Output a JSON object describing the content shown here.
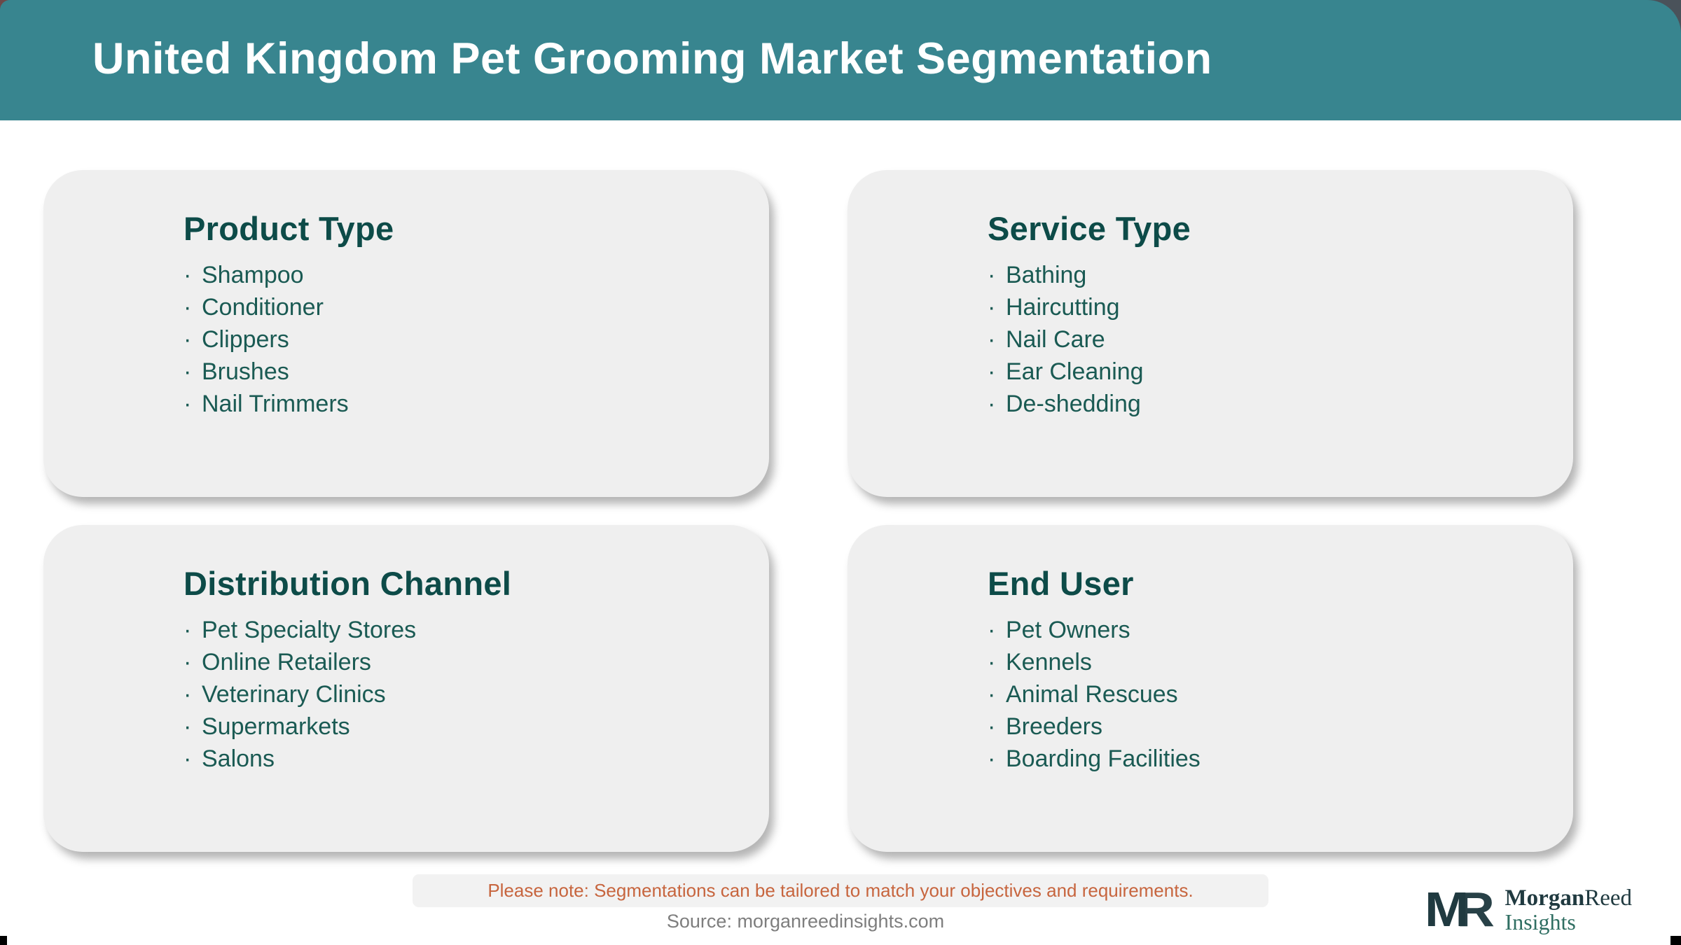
{
  "header": {
    "title": "United Kingdom Pet Grooming Market Segmentation"
  },
  "bullet": "·",
  "cards": [
    {
      "title": "Product Type",
      "items": [
        "Shampoo",
        "Conditioner",
        "Clippers",
        "Brushes",
        "Nail Trimmers"
      ]
    },
    {
      "title": "Service Type",
      "items": [
        "Bathing",
        "Haircutting",
        "Nail Care",
        "Ear Cleaning",
        "De-shedding"
      ]
    },
    {
      "title": "Distribution Channel",
      "items": [
        "Pet Specialty Stores",
        "Online Retailers",
        "Veterinary Clinics",
        "Supermarkets",
        "Salons"
      ]
    },
    {
      "title": "End User",
      "items": [
        "Pet Owners",
        "Kennels",
        "Animal Rescues",
        "Breeders",
        "Boarding Facilities"
      ]
    }
  ],
  "footer": {
    "note": "Please note: Segmentations can be tailored to match your objectives and requirements.",
    "source": "Source: morganreedinsights.com"
  },
  "logo": {
    "monogram_m": "M",
    "monogram_r": "R",
    "name_part1": "Morgan",
    "name_part2": "Reed",
    "tagline": "Insights"
  },
  "colors": {
    "page_bg": "#ffffff",
    "header_bg": "#38858f",
    "title_color": "#ffffff",
    "card_bg": "#efefef",
    "heading_color": "#0d4b48",
    "item_color": "#1a5a53",
    "note_bg": "#f2f2f2",
    "note_color": "#c7653e",
    "source_color": "#7e7e7e",
    "logo_dark": "#203a40",
    "logo_teal": "#2f6e62",
    "corner_left": "#6e4848",
    "corner_right": "#4a525a"
  }
}
